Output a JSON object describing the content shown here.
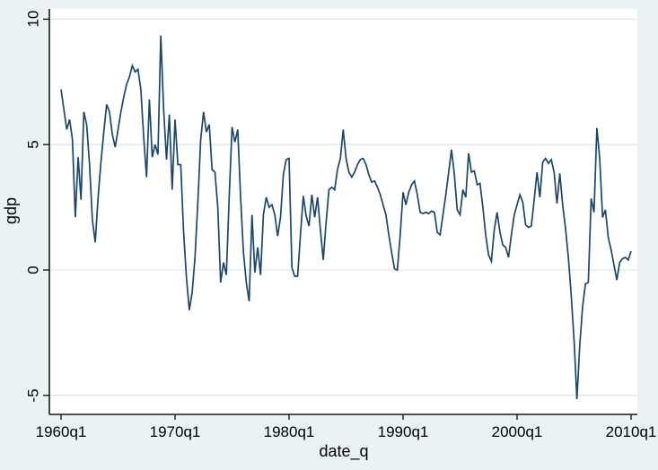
{
  "figure": {
    "background_color": "#eaf2f3",
    "plot_background_color": "#ffffff",
    "grid_color": "#dde9f0",
    "axis_color": "#1a1a1a",
    "text_color": "#000000",
    "line_color": "#1a476f"
  },
  "chart_data": {
    "type": "line",
    "title": "",
    "xlabel": "date_q",
    "ylabel": "gdp",
    "frequency": "quarterly",
    "x_start": "1960q1",
    "x_end": "2010q1",
    "x_tick_labels": [
      "1960q1",
      "1970q1",
      "1980q1",
      "1990q1",
      "2000q1",
      "2010q1"
    ],
    "x_tick_quarter_index": [
      0,
      40,
      80,
      120,
      160,
      200
    ],
    "y_tick_labels": [
      "10",
      "5",
      "0",
      "-5"
    ],
    "y_ticks": [
      10,
      5,
      0,
      -5
    ],
    "ylim": [
      -5.75,
      10.4
    ],
    "grid": "horizontal",
    "legend": "none",
    "series": [
      {
        "name": "gdp",
        "values": [
          7.2,
          6.4,
          5.6,
          6.0,
          5.2,
          2.1,
          4.5,
          2.8,
          6.3,
          5.8,
          4.2,
          2.0,
          1.1,
          2.9,
          4.3,
          5.5,
          6.6,
          6.3,
          5.4,
          4.9,
          5.6,
          6.3,
          6.9,
          7.4,
          7.7,
          8.15,
          7.9,
          8.0,
          7.2,
          5.3,
          3.7,
          6.8,
          4.5,
          5.0,
          4.6,
          9.35,
          6.4,
          4.4,
          6.2,
          3.2,
          6.0,
          4.2,
          4.2,
          1.5,
          -0.3,
          -1.6,
          -0.9,
          0.5,
          2.7,
          5.2,
          6.3,
          5.5,
          5.8,
          4.0,
          3.9,
          2.5,
          -0.5,
          0.3,
          -0.2,
          2.9,
          5.7,
          5.1,
          5.6,
          2.9,
          0.7,
          -0.5,
          -1.25,
          2.2,
          -0.1,
          0.9,
          -0.2,
          2.2,
          2.9,
          2.5,
          2.6,
          2.2,
          1.35,
          2.1,
          3.8,
          4.4,
          4.45,
          0.1,
          -0.25,
          -0.25,
          1.4,
          2.95,
          2.15,
          1.75,
          3.0,
          2.1,
          2.9,
          1.6,
          0.4,
          1.9,
          3.2,
          3.3,
          3.2,
          4.0,
          4.45,
          5.6,
          4.45,
          3.9,
          3.7,
          3.9,
          4.2,
          4.4,
          4.45,
          4.2,
          3.8,
          3.5,
          3.55,
          3.3,
          3.0,
          2.6,
          2.2,
          1.4,
          0.7,
          0.05,
          0.0,
          1.4,
          3.1,
          2.6,
          3.1,
          3.4,
          3.55,
          3.0,
          2.3,
          2.25,
          2.3,
          2.25,
          2.35,
          2.3,
          1.5,
          1.4,
          2.2,
          3.0,
          3.9,
          4.8,
          3.8,
          2.4,
          2.2,
          3.2,
          2.9,
          4.65,
          3.9,
          3.95,
          3.4,
          3.45,
          2.5,
          1.4,
          0.6,
          0.35,
          1.6,
          2.3,
          1.5,
          1.0,
          0.9,
          0.5,
          1.4,
          2.2,
          2.6,
          3.0,
          2.7,
          1.8,
          1.7,
          1.75,
          2.8,
          3.9,
          2.9,
          4.3,
          4.45,
          4.25,
          4.4,
          3.9,
          2.65,
          3.85,
          2.6,
          1.65,
          0.5,
          -1.0,
          -2.8,
          -5.15,
          -3.0,
          -1.45,
          -0.55,
          -0.5,
          2.85,
          2.3,
          5.66,
          4.45,
          2.1,
          2.4,
          1.3,
          0.8,
          0.2,
          -0.4,
          0.3,
          0.45,
          0.5,
          0.4,
          0.75
        ]
      }
    ]
  }
}
